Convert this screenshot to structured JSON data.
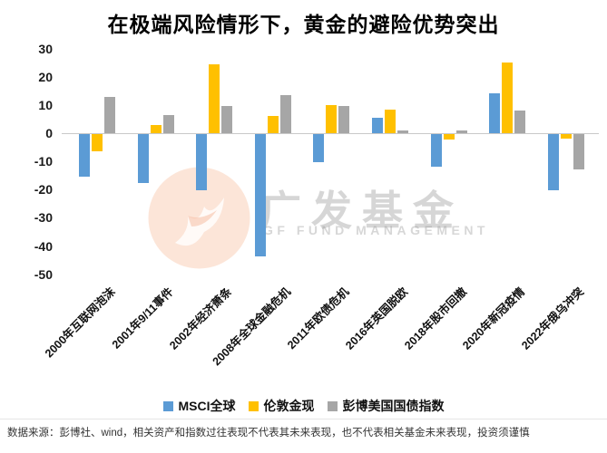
{
  "title": "在极端风险情形下，黄金的避险优势突出",
  "chart_data": {
    "type": "bar",
    "title": "在极端风险情形下，黄金的避险优势突出",
    "categories": [
      "2000年互联网泡沫",
      "2001年9/11事件",
      "2002年经济萧条",
      "2008年全球金融危机",
      "2011年欧债危机",
      "2016年英国脱欧",
      "2018年股市回撤",
      "2020年新冠疫情",
      "2022年俄乌冲突"
    ],
    "series": [
      {
        "name": "MSCI全球",
        "color": "#5B9BD5",
        "values": [
          -15,
          -17.5,
          -20,
          -43.5,
          -10,
          5.5,
          -11.5,
          14,
          -20
        ]
      },
      {
        "name": "伦敦金现",
        "color": "#FFC000",
        "values": [
          -6,
          3,
          24.5,
          6,
          10,
          8.5,
          -2,
          25,
          -1.5
        ]
      },
      {
        "name": "彭博美国国债指数",
        "color": "#A6A6A6",
        "values": [
          13,
          6.5,
          9.5,
          13.5,
          9.5,
          1,
          1,
          8,
          -12.5
        ]
      }
    ],
    "ylim": [
      -50,
      30
    ],
    "yticks": [
      30,
      20,
      10,
      0,
      -10,
      -20,
      -30,
      -40,
      -50
    ],
    "xlabel": "",
    "ylabel": "",
    "grid": false,
    "legend_position": "bottom",
    "unit": "%"
  },
  "watermark": {
    "cn": "广发基金",
    "en": "GF FUND MANAGEMENT",
    "logo_circle_color": "#FBDCCB",
    "logo_swoosh_color": "#FFFFFF"
  },
  "colors": {
    "axis_line": "#C9C9C9",
    "tick_text": "#1A1A1A",
    "background": "#FFFFFF"
  },
  "footer": {
    "text": "数据来源：彭博社、wind，相关资产和指数过往表现不代表其未来表现，也不代表相关基金未来表现，投资须谨慎"
  }
}
